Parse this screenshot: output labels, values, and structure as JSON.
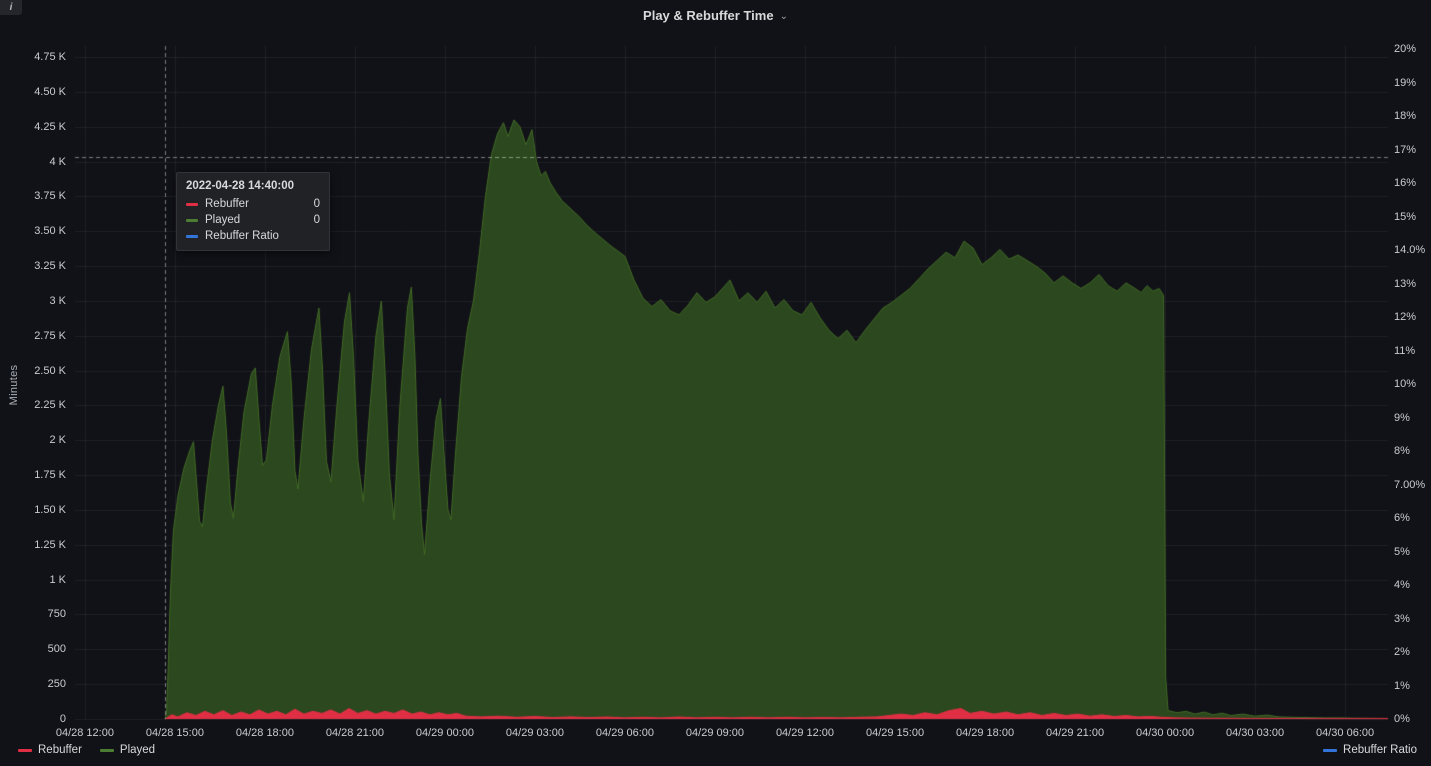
{
  "panel": {
    "title": "Play & Rebuffer Time",
    "menu_icon": "⌄",
    "info_icon": "i"
  },
  "chart_data": {
    "type": "area",
    "title": "Play & Rebuffer Time",
    "ylabel_left": "Minutes",
    "x_unit": "hours since 2022-04-28 12:00",
    "xlim": [
      -0.33,
      43.43
    ],
    "ylim_left": [
      0,
      4830
    ],
    "ylim_right": [
      0,
      20.1
    ],
    "grid": true,
    "legend_position": "bottom",
    "x_ticks": [
      [
        0,
        "04/28 12:00"
      ],
      [
        3,
        "04/28 15:00"
      ],
      [
        6,
        "04/28 18:00"
      ],
      [
        9,
        "04/28 21:00"
      ],
      [
        12,
        "04/29 00:00"
      ],
      [
        15,
        "04/29 03:00"
      ],
      [
        18,
        "04/29 06:00"
      ],
      [
        21,
        "04/29 09:00"
      ],
      [
        24,
        "04/29 12:00"
      ],
      [
        27,
        "04/29 15:00"
      ],
      [
        30,
        "04/29 18:00"
      ],
      [
        33,
        "04/29 21:00"
      ],
      [
        36,
        "04/30 00:00"
      ],
      [
        39,
        "04/30 03:00"
      ],
      [
        42,
        "04/30 06:00"
      ]
    ],
    "y_ticks_left": [
      [
        0,
        "0"
      ],
      [
        250,
        "250"
      ],
      [
        500,
        "500"
      ],
      [
        750,
        "750"
      ],
      [
        1000,
        "1 K"
      ],
      [
        1250,
        "1.25 K"
      ],
      [
        1500,
        "1.50 K"
      ],
      [
        1750,
        "1.75 K"
      ],
      [
        2000,
        "2 K"
      ],
      [
        2250,
        "2.25 K"
      ],
      [
        2500,
        "2.50 K"
      ],
      [
        2750,
        "2.75 K"
      ],
      [
        3000,
        "3 K"
      ],
      [
        3250,
        "3.25 K"
      ],
      [
        3500,
        "3.50 K"
      ],
      [
        3750,
        "3.75 K"
      ],
      [
        4000,
        "4 K"
      ],
      [
        4250,
        "4.25 K"
      ],
      [
        4500,
        "4.50 K"
      ],
      [
        4750,
        "4.75 K"
      ]
    ],
    "y_ticks_right": [
      [
        0,
        "0%"
      ],
      [
        1,
        "1%"
      ],
      [
        2,
        "2%"
      ],
      [
        3,
        "3%"
      ],
      [
        4,
        "4%"
      ],
      [
        5,
        "5%"
      ],
      [
        6,
        "6%"
      ],
      [
        7,
        "7.00%"
      ],
      [
        8,
        "8%"
      ],
      [
        9,
        "9%"
      ],
      [
        10,
        "10%"
      ],
      [
        11,
        "11%"
      ],
      [
        12,
        "12%"
      ],
      [
        13,
        "13%"
      ],
      [
        14,
        "14.0%"
      ],
      [
        15,
        "15%"
      ],
      [
        16,
        "16%"
      ],
      [
        17,
        "17%"
      ],
      [
        18,
        "18%"
      ],
      [
        19,
        "19%"
      ],
      [
        20,
        "20%"
      ]
    ],
    "crosshair": {
      "x_hours": 2.67,
      "y_minutes": 4030,
      "timestamp": "2022-04-28 14:40:00"
    },
    "series": [
      {
        "name": "Rebuffer",
        "color": "#e02f44",
        "fill": "#e02f44",
        "axis": "left",
        "points": [
          [
            2.67,
            0
          ],
          [
            2.9,
            30
          ],
          [
            3.1,
            15
          ],
          [
            3.4,
            45
          ],
          [
            3.7,
            25
          ],
          [
            4.0,
            55
          ],
          [
            4.3,
            30
          ],
          [
            4.6,
            60
          ],
          [
            4.9,
            25
          ],
          [
            5.2,
            50
          ],
          [
            5.5,
            30
          ],
          [
            5.8,
            65
          ],
          [
            6.1,
            35
          ],
          [
            6.4,
            55
          ],
          [
            6.7,
            30
          ],
          [
            7.0,
            70
          ],
          [
            7.3,
            35
          ],
          [
            7.6,
            55
          ],
          [
            7.9,
            40
          ],
          [
            8.2,
            65
          ],
          [
            8.5,
            35
          ],
          [
            8.8,
            75
          ],
          [
            9.1,
            40
          ],
          [
            9.4,
            60
          ],
          [
            9.7,
            35
          ],
          [
            10.0,
            55
          ],
          [
            10.3,
            40
          ],
          [
            10.6,
            65
          ],
          [
            10.9,
            35
          ],
          [
            11.2,
            50
          ],
          [
            11.5,
            30
          ],
          [
            11.8,
            45
          ],
          [
            12.1,
            30
          ],
          [
            12.4,
            40
          ],
          [
            12.7,
            20
          ],
          [
            13.2,
            15
          ],
          [
            13.8,
            20
          ],
          [
            14.4,
            12
          ],
          [
            15.0,
            18
          ],
          [
            15.6,
            10
          ],
          [
            16.2,
            15
          ],
          [
            16.8,
            10
          ],
          [
            17.4,
            14
          ],
          [
            18.0,
            8
          ],
          [
            18.6,
            12
          ],
          [
            19.2,
            8
          ],
          [
            19.8,
            14
          ],
          [
            20.4,
            8
          ],
          [
            21.0,
            12
          ],
          [
            21.6,
            8
          ],
          [
            22.2,
            12
          ],
          [
            22.8,
            8
          ],
          [
            23.4,
            12
          ],
          [
            24.0,
            8
          ],
          [
            24.6,
            10
          ],
          [
            25.2,
            8
          ],
          [
            25.8,
            12
          ],
          [
            26.4,
            15
          ],
          [
            26.8,
            25
          ],
          [
            27.2,
            35
          ],
          [
            27.6,
            25
          ],
          [
            28.0,
            45
          ],
          [
            28.4,
            30
          ],
          [
            28.8,
            60
          ],
          [
            29.2,
            75
          ],
          [
            29.5,
            40
          ],
          [
            29.9,
            55
          ],
          [
            30.3,
            35
          ],
          [
            30.7,
            50
          ],
          [
            31.1,
            30
          ],
          [
            31.5,
            45
          ],
          [
            31.9,
            25
          ],
          [
            32.3,
            40
          ],
          [
            32.7,
            25
          ],
          [
            33.1,
            35
          ],
          [
            33.5,
            20
          ],
          [
            33.9,
            30
          ],
          [
            34.3,
            18
          ],
          [
            34.7,
            25
          ],
          [
            35.1,
            15
          ],
          [
            35.5,
            18
          ],
          [
            35.9,
            12
          ],
          [
            36.3,
            8
          ],
          [
            36.9,
            6
          ],
          [
            37.5,
            5
          ],
          [
            38.2,
            5
          ],
          [
            39.0,
            4
          ],
          [
            40.0,
            4
          ],
          [
            41.0,
            3
          ],
          [
            42.0,
            3
          ],
          [
            43.0,
            3
          ],
          [
            43.43,
            3
          ]
        ]
      },
      {
        "name": "Played",
        "color": "#436b27",
        "fill": "#2b481e",
        "axis": "left",
        "points": [
          [
            2.67,
            0
          ],
          [
            2.72,
            40
          ],
          [
            2.78,
            400
          ],
          [
            2.85,
            900
          ],
          [
            2.95,
            1350
          ],
          [
            3.1,
            1600
          ],
          [
            3.3,
            1800
          ],
          [
            3.5,
            1930
          ],
          [
            3.62,
            1990
          ],
          [
            3.72,
            1700
          ],
          [
            3.82,
            1420
          ],
          [
            3.92,
            1380
          ],
          [
            4.05,
            1650
          ],
          [
            4.25,
            2000
          ],
          [
            4.45,
            2250
          ],
          [
            4.6,
            2390
          ],
          [
            4.72,
            2050
          ],
          [
            4.85,
            1550
          ],
          [
            4.95,
            1440
          ],
          [
            5.1,
            1800
          ],
          [
            5.3,
            2200
          ],
          [
            5.55,
            2480
          ],
          [
            5.68,
            2520
          ],
          [
            5.8,
            2150
          ],
          [
            5.92,
            1820
          ],
          [
            6.05,
            1860
          ],
          [
            6.25,
            2250
          ],
          [
            6.5,
            2600
          ],
          [
            6.75,
            2780
          ],
          [
            6.88,
            2400
          ],
          [
            7.0,
            1780
          ],
          [
            7.1,
            1650
          ],
          [
            7.3,
            2150
          ],
          [
            7.55,
            2650
          ],
          [
            7.8,
            2950
          ],
          [
            7.92,
            2500
          ],
          [
            8.05,
            1850
          ],
          [
            8.2,
            1700
          ],
          [
            8.4,
            2250
          ],
          [
            8.65,
            2850
          ],
          [
            8.82,
            3060
          ],
          [
            8.95,
            2600
          ],
          [
            9.1,
            1850
          ],
          [
            9.28,
            1560
          ],
          [
            9.45,
            2100
          ],
          [
            9.7,
            2750
          ],
          [
            9.88,
            3000
          ],
          [
            10.0,
            2500
          ],
          [
            10.15,
            1750
          ],
          [
            10.3,
            1430
          ],
          [
            10.5,
            2250
          ],
          [
            10.75,
            2950
          ],
          [
            10.88,
            3100
          ],
          [
            11.0,
            2600
          ],
          [
            11.1,
            1900
          ],
          [
            11.22,
            1400
          ],
          [
            11.32,
            1180
          ],
          [
            11.5,
            1700
          ],
          [
            11.7,
            2150
          ],
          [
            11.85,
            2300
          ],
          [
            11.97,
            1900
          ],
          [
            12.1,
            1500
          ],
          [
            12.2,
            1430
          ],
          [
            12.35,
            1900
          ],
          [
            12.55,
            2450
          ],
          [
            12.75,
            2800
          ],
          [
            12.95,
            3000
          ],
          [
            13.15,
            3350
          ],
          [
            13.35,
            3750
          ],
          [
            13.55,
            4050
          ],
          [
            13.75,
            4200
          ],
          [
            13.95,
            4280
          ],
          [
            14.1,
            4180
          ],
          [
            14.3,
            4300
          ],
          [
            14.5,
            4250
          ],
          [
            14.7,
            4120
          ],
          [
            14.9,
            4230
          ],
          [
            15.05,
            4000
          ],
          [
            15.2,
            3900
          ],
          [
            15.35,
            3930
          ],
          [
            15.5,
            3850
          ],
          [
            15.7,
            3780
          ],
          [
            15.9,
            3720
          ],
          [
            16.1,
            3680
          ],
          [
            16.3,
            3640
          ],
          [
            16.5,
            3600
          ],
          [
            16.7,
            3550
          ],
          [
            17.0,
            3490
          ],
          [
            17.5,
            3400
          ],
          [
            18.0,
            3320
          ],
          [
            18.3,
            3150
          ],
          [
            18.6,
            3020
          ],
          [
            18.9,
            2960
          ],
          [
            19.2,
            3010
          ],
          [
            19.5,
            2930
          ],
          [
            19.8,
            2900
          ],
          [
            20.1,
            2970
          ],
          [
            20.4,
            3060
          ],
          [
            20.7,
            2990
          ],
          [
            21.0,
            3030
          ],
          [
            21.5,
            3150
          ],
          [
            21.8,
            3000
          ],
          [
            22.1,
            3060
          ],
          [
            22.4,
            2990
          ],
          [
            22.7,
            3070
          ],
          [
            23.0,
            2950
          ],
          [
            23.3,
            3010
          ],
          [
            23.6,
            2930
          ],
          [
            23.9,
            2900
          ],
          [
            24.2,
            2990
          ],
          [
            24.5,
            2880
          ],
          [
            24.8,
            2790
          ],
          [
            25.1,
            2730
          ],
          [
            25.4,
            2790
          ],
          [
            25.7,
            2700
          ],
          [
            26.0,
            2790
          ],
          [
            26.3,
            2870
          ],
          [
            26.6,
            2950
          ],
          [
            26.9,
            2990
          ],
          [
            27.2,
            3040
          ],
          [
            27.5,
            3090
          ],
          [
            27.8,
            3160
          ],
          [
            28.1,
            3230
          ],
          [
            28.4,
            3290
          ],
          [
            28.7,
            3350
          ],
          [
            29.0,
            3310
          ],
          [
            29.3,
            3430
          ],
          [
            29.6,
            3380
          ],
          [
            29.9,
            3260
          ],
          [
            30.2,
            3310
          ],
          [
            30.5,
            3370
          ],
          [
            30.8,
            3300
          ],
          [
            31.1,
            3330
          ],
          [
            31.4,
            3290
          ],
          [
            31.7,
            3250
          ],
          [
            32.0,
            3200
          ],
          [
            32.3,
            3130
          ],
          [
            32.6,
            3180
          ],
          [
            32.9,
            3130
          ],
          [
            33.2,
            3090
          ],
          [
            33.5,
            3130
          ],
          [
            33.8,
            3190
          ],
          [
            34.1,
            3110
          ],
          [
            34.4,
            3070
          ],
          [
            34.7,
            3130
          ],
          [
            35.0,
            3090
          ],
          [
            35.2,
            3060
          ],
          [
            35.4,
            3110
          ],
          [
            35.6,
            3070
          ],
          [
            35.8,
            3090
          ],
          [
            35.95,
            3040
          ],
          [
            36.02,
            300
          ],
          [
            36.1,
            60
          ],
          [
            36.4,
            45
          ],
          [
            36.7,
            55
          ],
          [
            37.0,
            35
          ],
          [
            37.3,
            50
          ],
          [
            37.6,
            30
          ],
          [
            37.9,
            42
          ],
          [
            38.2,
            25
          ],
          [
            38.6,
            35
          ],
          [
            39.0,
            20
          ],
          [
            39.4,
            28
          ],
          [
            39.8,
            15
          ],
          [
            40.3,
            12
          ],
          [
            40.8,
            10
          ],
          [
            41.3,
            8
          ],
          [
            41.8,
            8
          ],
          [
            42.3,
            6
          ],
          [
            42.8,
            5
          ],
          [
            43.3,
            4
          ],
          [
            43.43,
            4
          ]
        ]
      },
      {
        "name": "Rebuffer Ratio",
        "color": "#3274d9",
        "fill": "#3274d9",
        "axis": "right",
        "points": []
      }
    ]
  },
  "tooltip": {
    "timestamp": "2022-04-28 14:40:00",
    "rows": [
      {
        "label": "Rebuffer",
        "value": "0",
        "color": "#e02f44"
      },
      {
        "label": "Played",
        "value": "0",
        "color": "#4d7c33"
      },
      {
        "label": "Rebuffer Ratio",
        "value": "",
        "color": "#3274d9"
      }
    ]
  },
  "legend": {
    "left": [
      {
        "label": "Rebuffer",
        "color": "#e02f44"
      },
      {
        "label": "Played",
        "color": "#4d7c33"
      }
    ],
    "right": [
      {
        "label": "Rebuffer Ratio",
        "color": "#3274d9"
      }
    ]
  }
}
